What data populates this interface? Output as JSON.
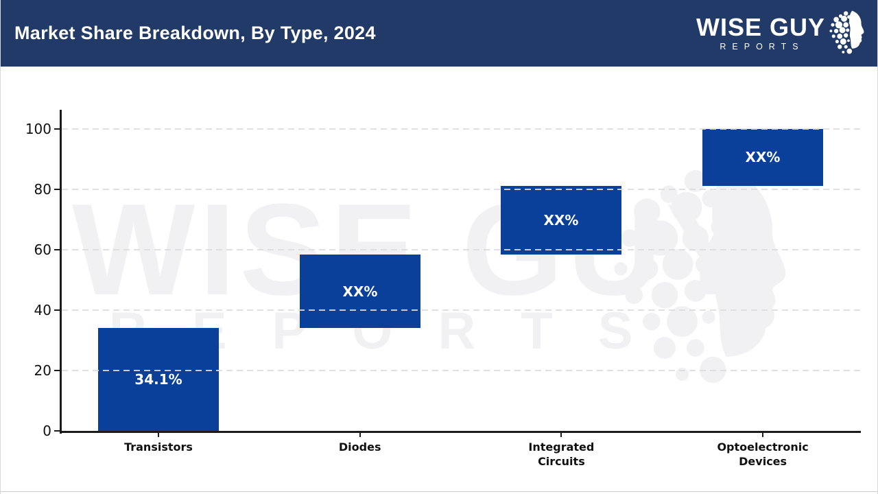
{
  "header": {
    "title": "Market Share Breakdown, By Type, 2024",
    "logo": {
      "line1": "WISE GUY",
      "line2": "REPORTS",
      "head_icon": "dotted-head-profile"
    }
  },
  "watermark": {
    "line1": "WISE GUY",
    "line2": "REPORTS",
    "head_icon": "dotted-head-profile"
  },
  "colors": {
    "header_bg": "#213a67",
    "bar": "#0a3f9a",
    "bar_label": "#ffffff",
    "grid": "#dcdcdc",
    "axis": "#1b1b1b",
    "watermark": "#f1f1f3"
  },
  "chart_data": {
    "type": "bar",
    "subtype": "waterfall",
    "title": "Market Share Breakdown, By Type, 2024",
    "xlabel": "",
    "ylabel": "",
    "ylim": [
      0,
      105
    ],
    "yticks": [
      0,
      20,
      40,
      60,
      80,
      100
    ],
    "grid": "horizontal-dashed",
    "legend": "none",
    "categories": [
      "Transistors",
      "Diodes",
      "Integrated\nCircuits",
      "Optoelectronic\nDevices"
    ],
    "segments": [
      {
        "category": "Transistors",
        "start": 0,
        "end": 34.1,
        "label": "34.1%"
      },
      {
        "category": "Diodes",
        "start": 34.1,
        "end": 58.4,
        "label": "XX%"
      },
      {
        "category": "Integrated Circuits",
        "start": 58.4,
        "end": 81.2,
        "label": "XX%"
      },
      {
        "category": "Optoelectronic Devices",
        "start": 81.2,
        "end": 100,
        "label": "XX%"
      }
    ]
  }
}
